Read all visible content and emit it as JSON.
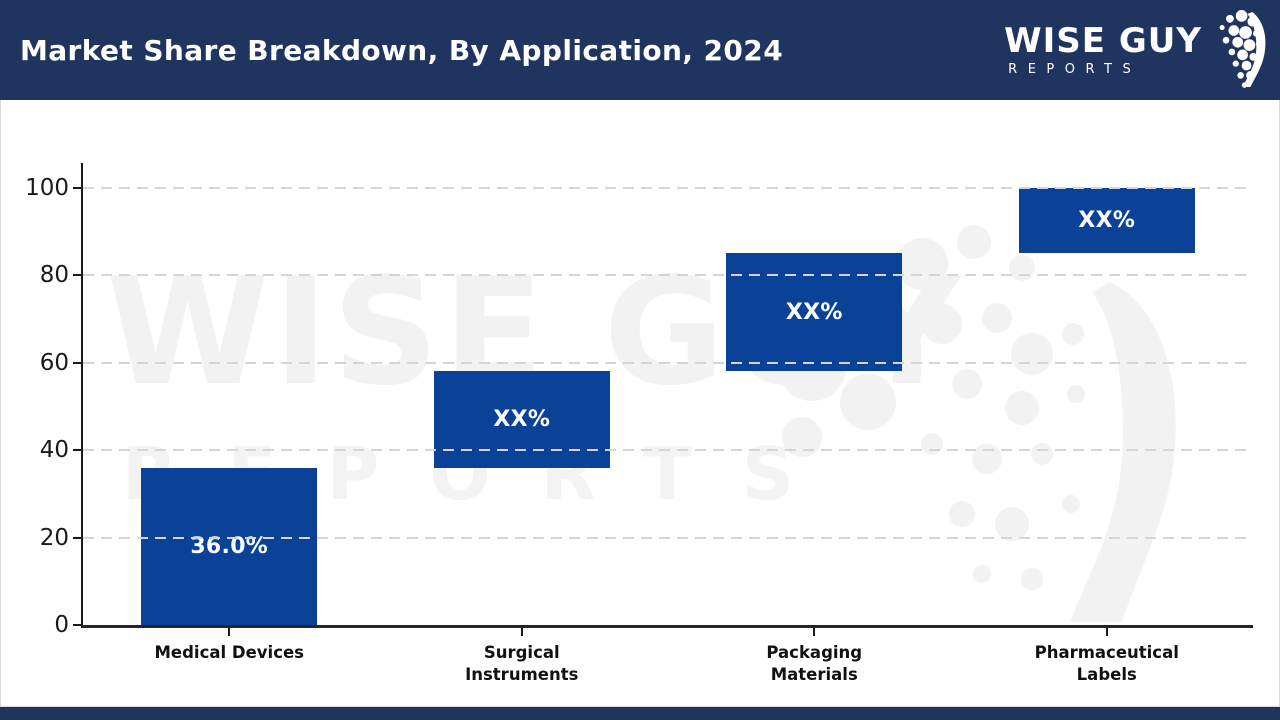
{
  "header": {
    "title": "Market Share Breakdown, By Application, 2024",
    "bg_color": "#203460",
    "logo": {
      "line1": "WISE GUY",
      "line2": "REPORTS",
      "head_icon": "dotted-head-profile"
    }
  },
  "watermark": {
    "line1": "WISE GUY",
    "line2": "REPORTS",
    "head_icon": "dotted-head-profile"
  },
  "chart_data": {
    "type": "bar",
    "subtype": "waterfall-floating-bars",
    "title": "Market Share Breakdown, By Application, 2024",
    "xlabel": "",
    "ylabel": "",
    "categories": [
      {
        "lines": [
          "Medical Devices"
        ]
      },
      {
        "lines": [
          "Surgical",
          "Instruments"
        ]
      },
      {
        "lines": [
          "Packaging",
          "Materials"
        ]
      },
      {
        "lines": [
          "Pharmaceutical",
          "Labels"
        ]
      }
    ],
    "series": [
      {
        "name": "Market Share (%)",
        "segments": [
          {
            "start": 0,
            "end": 36,
            "value": 36,
            "label": "36.0%"
          },
          {
            "start": 36,
            "end": 58,
            "value": 22,
            "label": "XX%"
          },
          {
            "start": 58,
            "end": 85,
            "value": 27,
            "label": "XX%"
          },
          {
            "start": 85,
            "end": 100,
            "value": 15,
            "label": "XX%"
          }
        ]
      }
    ],
    "yticks": [
      0,
      20,
      40,
      60,
      80,
      100
    ],
    "ylim": [
      0,
      105.6
    ],
    "grid": "horizontal-dashed",
    "legend": "none",
    "bar_color": "#0a4298",
    "grid_color": "#d5d5d5"
  }
}
